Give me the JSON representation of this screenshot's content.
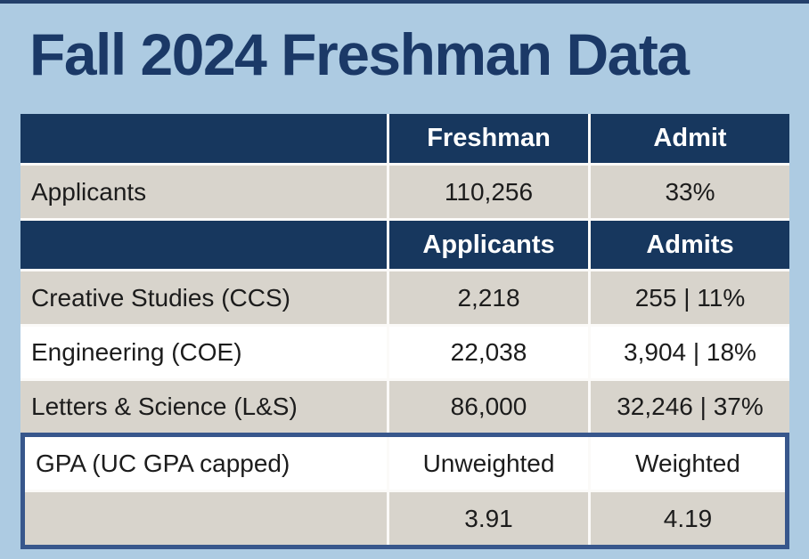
{
  "title": "Fall 2024 Freshman Data",
  "colors": {
    "background_blue": "#ADCBE2",
    "header_navy": "#17375E",
    "title_navy": "#1B3967",
    "row_tan": "#D8D4CC",
    "row_white": "#FFFFFF",
    "gpa_border_navy": "#38578C",
    "body_text": "#1C1C1C"
  },
  "table": {
    "overall_header": [
      "",
      "Freshman",
      "Admit"
    ],
    "overall_row": [
      "Applicants",
      "110,256",
      "33%"
    ],
    "college_header": [
      "",
      "Applicants",
      "Admits"
    ],
    "college_rows": [
      [
        "Creative Studies (CCS)",
        "2,218",
        "255 | 11%"
      ],
      [
        "Engineering (COE)",
        "22,038",
        "3,904 | 18%"
      ],
      [
        "Letters & Science (L&S)",
        "86,000",
        "32,246 | 37%"
      ]
    ],
    "gpa_header_row": [
      "GPA (UC GPA capped)",
      "Unweighted",
      "Weighted"
    ],
    "gpa_value_row": [
      "",
      "3.91",
      "4.19"
    ]
  }
}
